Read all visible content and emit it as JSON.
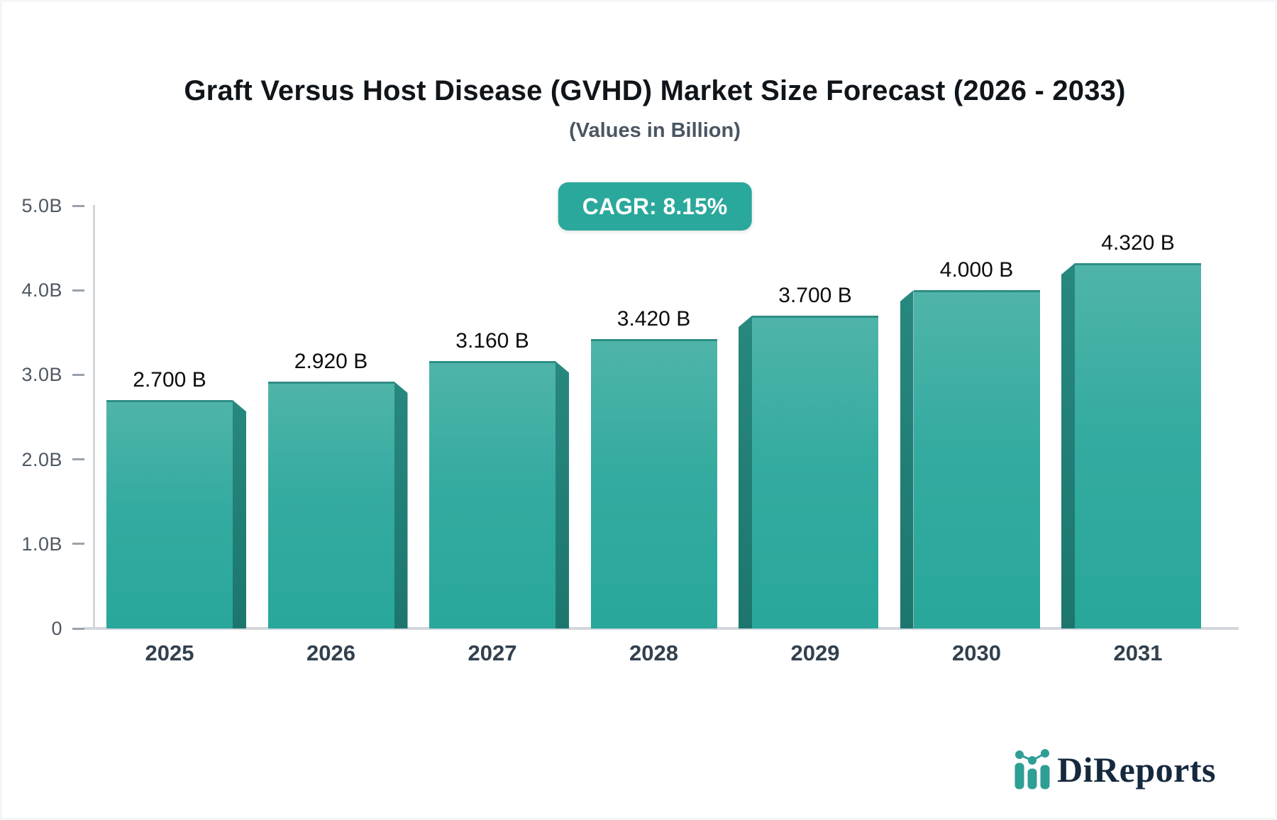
{
  "header": {
    "title": "Graft Versus Host Disease (GVHD) Market Size Forecast (2026 - 2033)",
    "subtitle": "(Values in Billion)"
  },
  "badge": {
    "label": "CAGR: 8.15%",
    "background": "#2aa89b",
    "text_color": "#ffffff"
  },
  "chart_data": {
    "type": "bar",
    "title": "Graft Versus Host Disease (GVHD) Market Size Forecast (2026 - 2033)",
    "subtitle": "(Values in Billion)",
    "cagr_label": "CAGR: 8.15%",
    "categories": [
      "2025",
      "2026",
      "2027",
      "2028",
      "2029",
      "2030",
      "2031"
    ],
    "values": [
      2.7,
      2.92,
      3.16,
      3.42,
      3.7,
      4.0,
      4.32
    ],
    "value_labels": [
      "2.700 B",
      "2.920 B",
      "3.160 B",
      "3.420 B",
      "3.700 B",
      "4.000 B",
      "4.320 B"
    ],
    "ylim": [
      0,
      5
    ],
    "ytick_values": [
      0,
      1,
      2,
      3,
      4,
      5
    ],
    "ytick_labels": [
      "0",
      "1.0B",
      "2.0B",
      "3.0B",
      "4.0B",
      "5.0B"
    ],
    "grid": false,
    "legend": "none",
    "bar_style": {
      "effect": "3d-perspective-sides-face-center",
      "front_top": "#4fb4aa",
      "front_mid": "#35aba0",
      "front_bottom": "#28a79a",
      "side_top": "#27887f",
      "side_bottom": "#1c766e",
      "top_edge": "#2e8e85"
    },
    "axis_color": "#d3d7dc",
    "tick_color": "#99a2ac",
    "y_label_color": "#4e5862",
    "x_label_color": "#32404e",
    "value_label_color": "#0c0d0e"
  },
  "logo": {
    "text": "DiReports",
    "icon": "bar-line-chart-icon",
    "icon_color": "#2f9e96",
    "text_color": "#15293e"
  }
}
